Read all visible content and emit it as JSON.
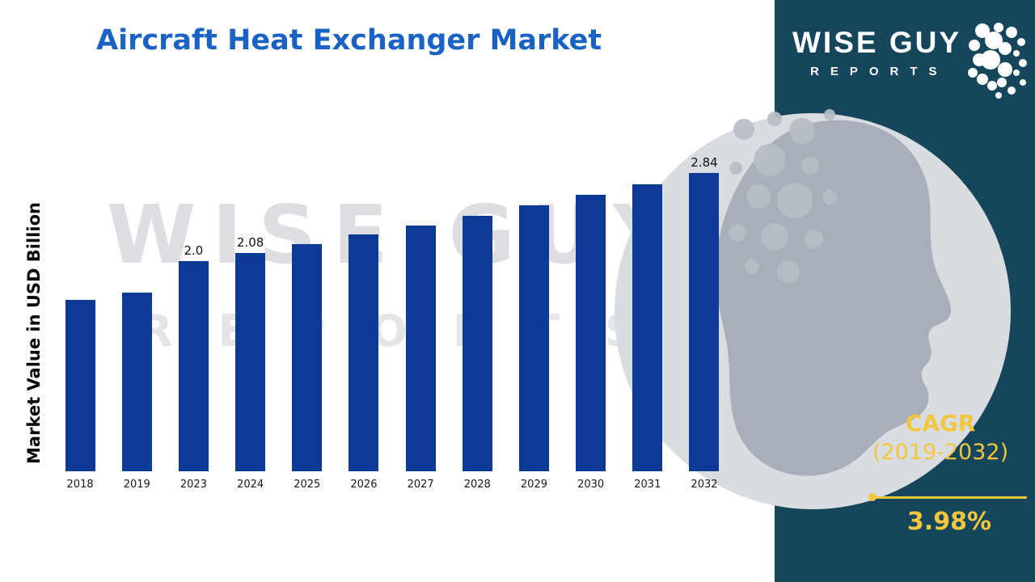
{
  "header": {
    "title": "Aircraft Heat Exchanger Market",
    "title_color": "#1a63c4"
  },
  "chart_data": {
    "type": "bar",
    "title": "Aircraft Heat Exchanger Market",
    "xlabel": "",
    "ylabel": "Market Value in USD Billion",
    "unit": "USD Billion",
    "categories": [
      "2018",
      "2019",
      "2023",
      "2024",
      "2025",
      "2026",
      "2027",
      "2028",
      "2029",
      "2030",
      "2031",
      "2032"
    ],
    "values": [
      1.63,
      1.7,
      2.0,
      2.08,
      2.16,
      2.25,
      2.34,
      2.43,
      2.53,
      2.63,
      2.73,
      2.84
    ],
    "bar_labels": [
      "",
      "",
      "2.0",
      "2.08",
      "",
      "",
      "",
      "",
      "",
      "",
      "",
      "2.84"
    ],
    "ylim": [
      0,
      3
    ],
    "grid": false,
    "legend": "none",
    "bar_color": "#0d3a94"
  },
  "brand": {
    "logo_line1": "WISE GUY",
    "logo_line2": "REPORTS",
    "panel_color": "#16465c",
    "accent_color": "#f2c73d"
  },
  "cagr": {
    "label": "CAGR",
    "range": "(2019-2032)",
    "value": "3.98%"
  },
  "watermark": {
    "line1": "WISE GUY",
    "line2": "REPORTS"
  }
}
